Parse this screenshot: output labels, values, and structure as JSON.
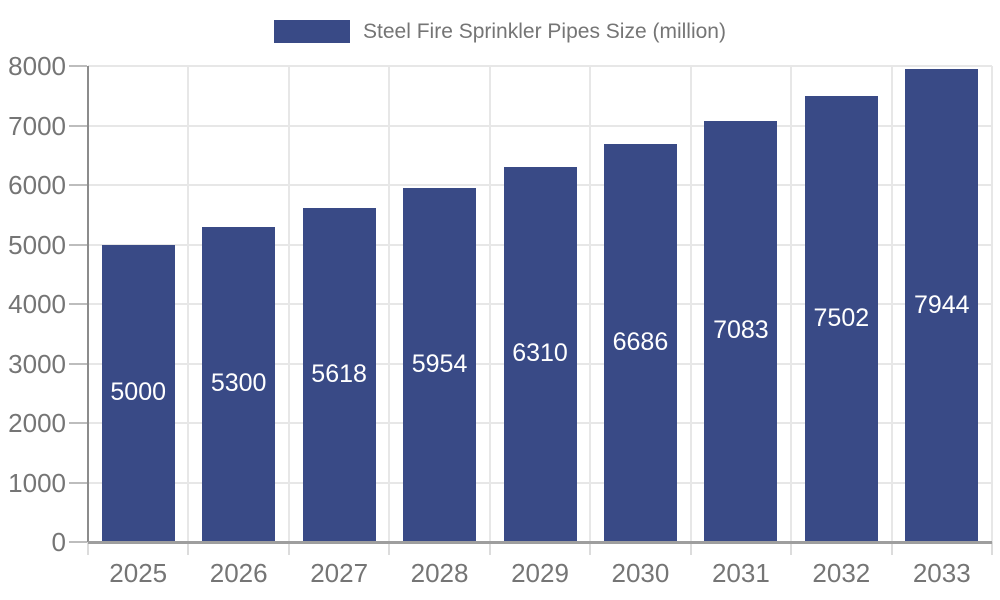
{
  "page": {
    "background": "#ffffff"
  },
  "legend": {
    "label": "Steel Fire Sprinkler Pipes Size (million)",
    "swatch_color": "#394a86",
    "text_color": "#757575"
  },
  "chart_data": {
    "type": "bar",
    "title": "Steel Fire Sprinkler Pipes Size (million)",
    "categories": [
      "2025",
      "2026",
      "2027",
      "2028",
      "2029",
      "2030",
      "2031",
      "2032",
      "2033"
    ],
    "values": [
      5000,
      5300,
      5618,
      5954,
      6310,
      6686,
      7083,
      7502,
      7944
    ],
    "xlabel": "",
    "ylabel": "",
    "ylim": [
      0,
      8000
    ],
    "yticks": [
      0,
      1000,
      2000,
      3000,
      4000,
      5000,
      6000,
      7000,
      8000
    ],
    "grid": true,
    "legend_position": "top-center",
    "bar_color": "#394a86",
    "bar_label_color": "#ffffff",
    "axis_text_color": "#757575",
    "grid_color": "#e7e7e7",
    "axis_line_color": "#9e9e9e",
    "spine_color": "#8c8c8c",
    "tick_color": "#bdbdbd",
    "below_tick_color": "#dcdcdc"
  }
}
